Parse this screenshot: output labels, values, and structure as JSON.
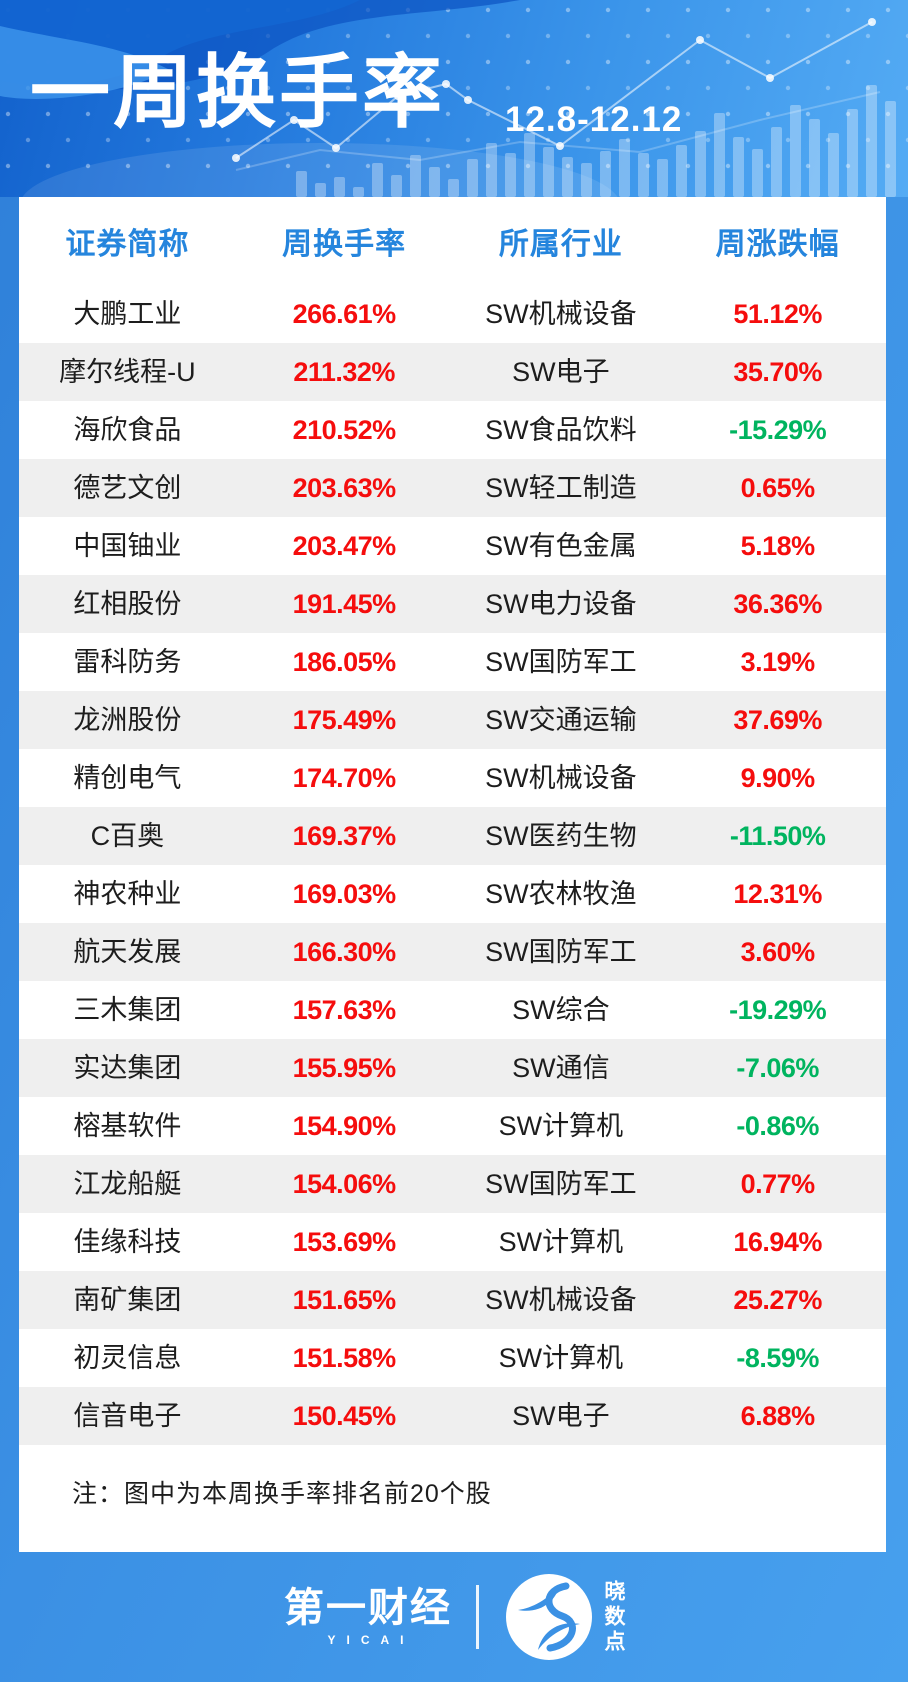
{
  "header": {
    "title": "一周换手率",
    "date_range": "12.8-12.12"
  },
  "chart_data": {
    "type": "table",
    "title": "一周换手率",
    "period": "12.8-12.12",
    "columns": [
      "证券简称",
      "周换手率",
      "所属行业",
      "周涨跌幅"
    ],
    "rows": [
      [
        "大鹏工业",
        "266.61%",
        "SW机械设备",
        "51.12%"
      ],
      [
        "摩尔线程-U",
        "211.32%",
        "SW电子",
        "35.70%"
      ],
      [
        "海欣食品",
        "210.52%",
        "SW食品饮料",
        "-15.29%"
      ],
      [
        "德艺文创",
        "203.63%",
        "SW轻工制造",
        "0.65%"
      ],
      [
        "中国铀业",
        "203.47%",
        "SW有色金属",
        "5.18%"
      ],
      [
        "红相股份",
        "191.45%",
        "SW电力设备",
        "36.36%"
      ],
      [
        "雷科防务",
        "186.05%",
        "SW国防军工",
        "3.19%"
      ],
      [
        "龙洲股份",
        "175.49%",
        "SW交通运输",
        "37.69%"
      ],
      [
        "精创电气",
        "174.70%",
        "SW机械设备",
        "9.90%"
      ],
      [
        "C百奥",
        "169.37%",
        "SW医药生物",
        "-11.50%"
      ],
      [
        "神农种业",
        "169.03%",
        "SW农林牧渔",
        "12.31%"
      ],
      [
        "航天发展",
        "166.30%",
        "SW国防军工",
        "3.60%"
      ],
      [
        "三木集团",
        "157.63%",
        "SW综合",
        "-19.29%"
      ],
      [
        "实达集团",
        "155.95%",
        "SW通信",
        "-7.06%"
      ],
      [
        "榕基软件",
        "154.90%",
        "SW计算机",
        "-0.86%"
      ],
      [
        "江龙船艇",
        "154.06%",
        "SW国防军工",
        "0.77%"
      ],
      [
        "佳缘科技",
        "153.69%",
        "SW计算机",
        "16.94%"
      ],
      [
        "南矿集团",
        "151.65%",
        "SW机械设备",
        "25.27%"
      ],
      [
        "初灵信息",
        "151.58%",
        "SW计算机",
        "-8.59%"
      ],
      [
        "信音电子",
        "150.45%",
        "SW电子",
        "6.88%"
      ]
    ],
    "value_color_rule": "turnover always red; change red if positive, green if negative",
    "legend_position": "none",
    "grid": "alternating row stripes"
  },
  "note": "注：图中为本周换手率排名前20个股",
  "footer": {
    "brand_primary": "第一财经",
    "brand_primary_sub": "YICAI",
    "brand_secondary": "晓数点"
  },
  "colors": {
    "header_label_blue": "#2585dd",
    "up_red": "#f50d0d",
    "down_green": "#00b45f",
    "row_alt_bg": "#efefef",
    "page_blue": "#3b91e4",
    "banner_blue_dark": "#1261cc",
    "banner_blue_light": "#54abf4"
  }
}
